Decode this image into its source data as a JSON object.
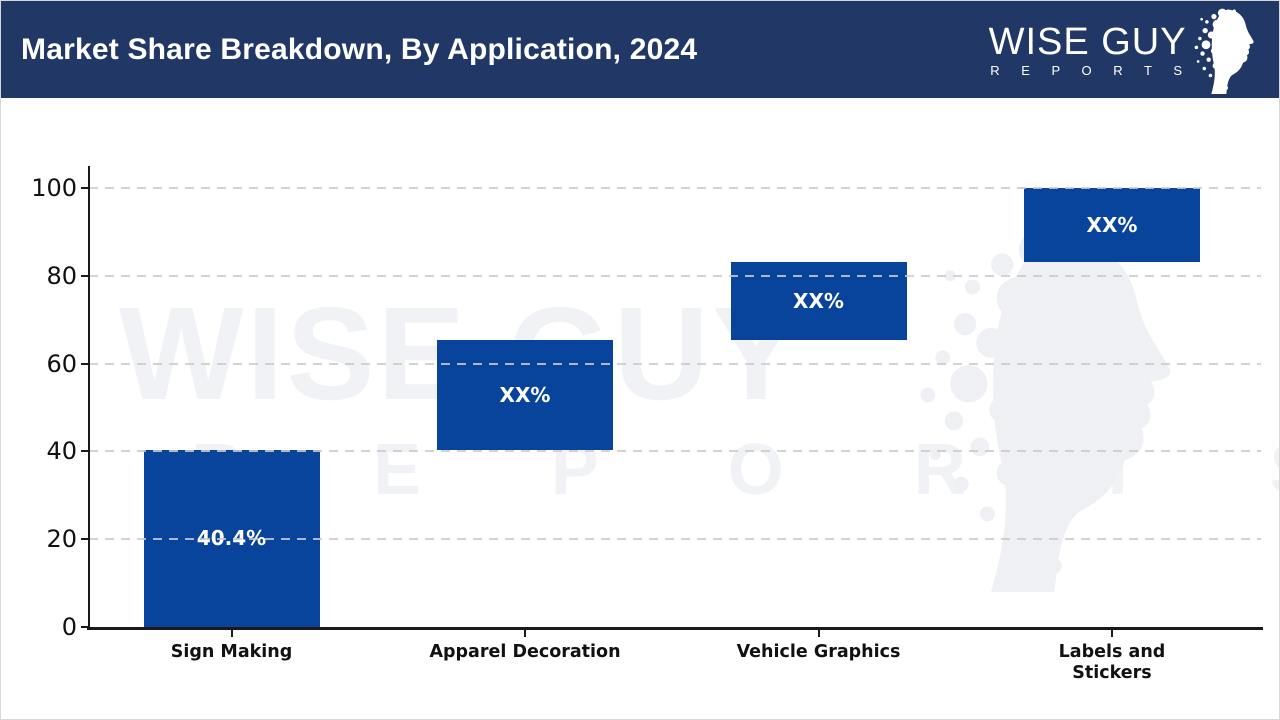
{
  "header": {
    "title": "Market Share Breakdown, By Application, 2024",
    "logo": {
      "line1": "WISE GUY",
      "line2": "R E P O R T S"
    }
  },
  "watermark": {
    "line1": "WISE GUY",
    "line2": "R E P O R T S"
  },
  "chart_data": {
    "type": "bar",
    "subtype": "floating-waterfall",
    "title": "Market Share Breakdown, By Application, 2024",
    "categories": [
      "Sign Making",
      "Apparel Decoration",
      "Vehicle Graphics",
      "Labels and Stickers"
    ],
    "segments": [
      {
        "category": "Sign Making",
        "start": 0,
        "end": 40.4,
        "label": "40.4%"
      },
      {
        "category": "Apparel Decoration",
        "start": 40.4,
        "end": 65.4,
        "label": "XX%"
      },
      {
        "category": "Vehicle Graphics",
        "start": 65.4,
        "end": 83.2,
        "label": "XX%"
      },
      {
        "category": "Labels and Stickers",
        "start": 83.2,
        "end": 100.0,
        "label": "XX%"
      }
    ],
    "yticks": [
      0,
      20,
      40,
      60,
      80,
      100
    ],
    "ylim": [
      0,
      105
    ],
    "xlabel": "",
    "ylabel": "",
    "grid": "dashed horizontal, drawn over bars",
    "legend": "none",
    "bar_color": "#08449b",
    "bar_label_color": "#ffffff",
    "axis_color": "#1a1a1a"
  },
  "colors": {
    "header_bg": "#213766",
    "header_text": "#ffffff",
    "watermark": "#f0f1f4",
    "grid": "#cbcbcb",
    "page_border": "#d8d8d8"
  }
}
